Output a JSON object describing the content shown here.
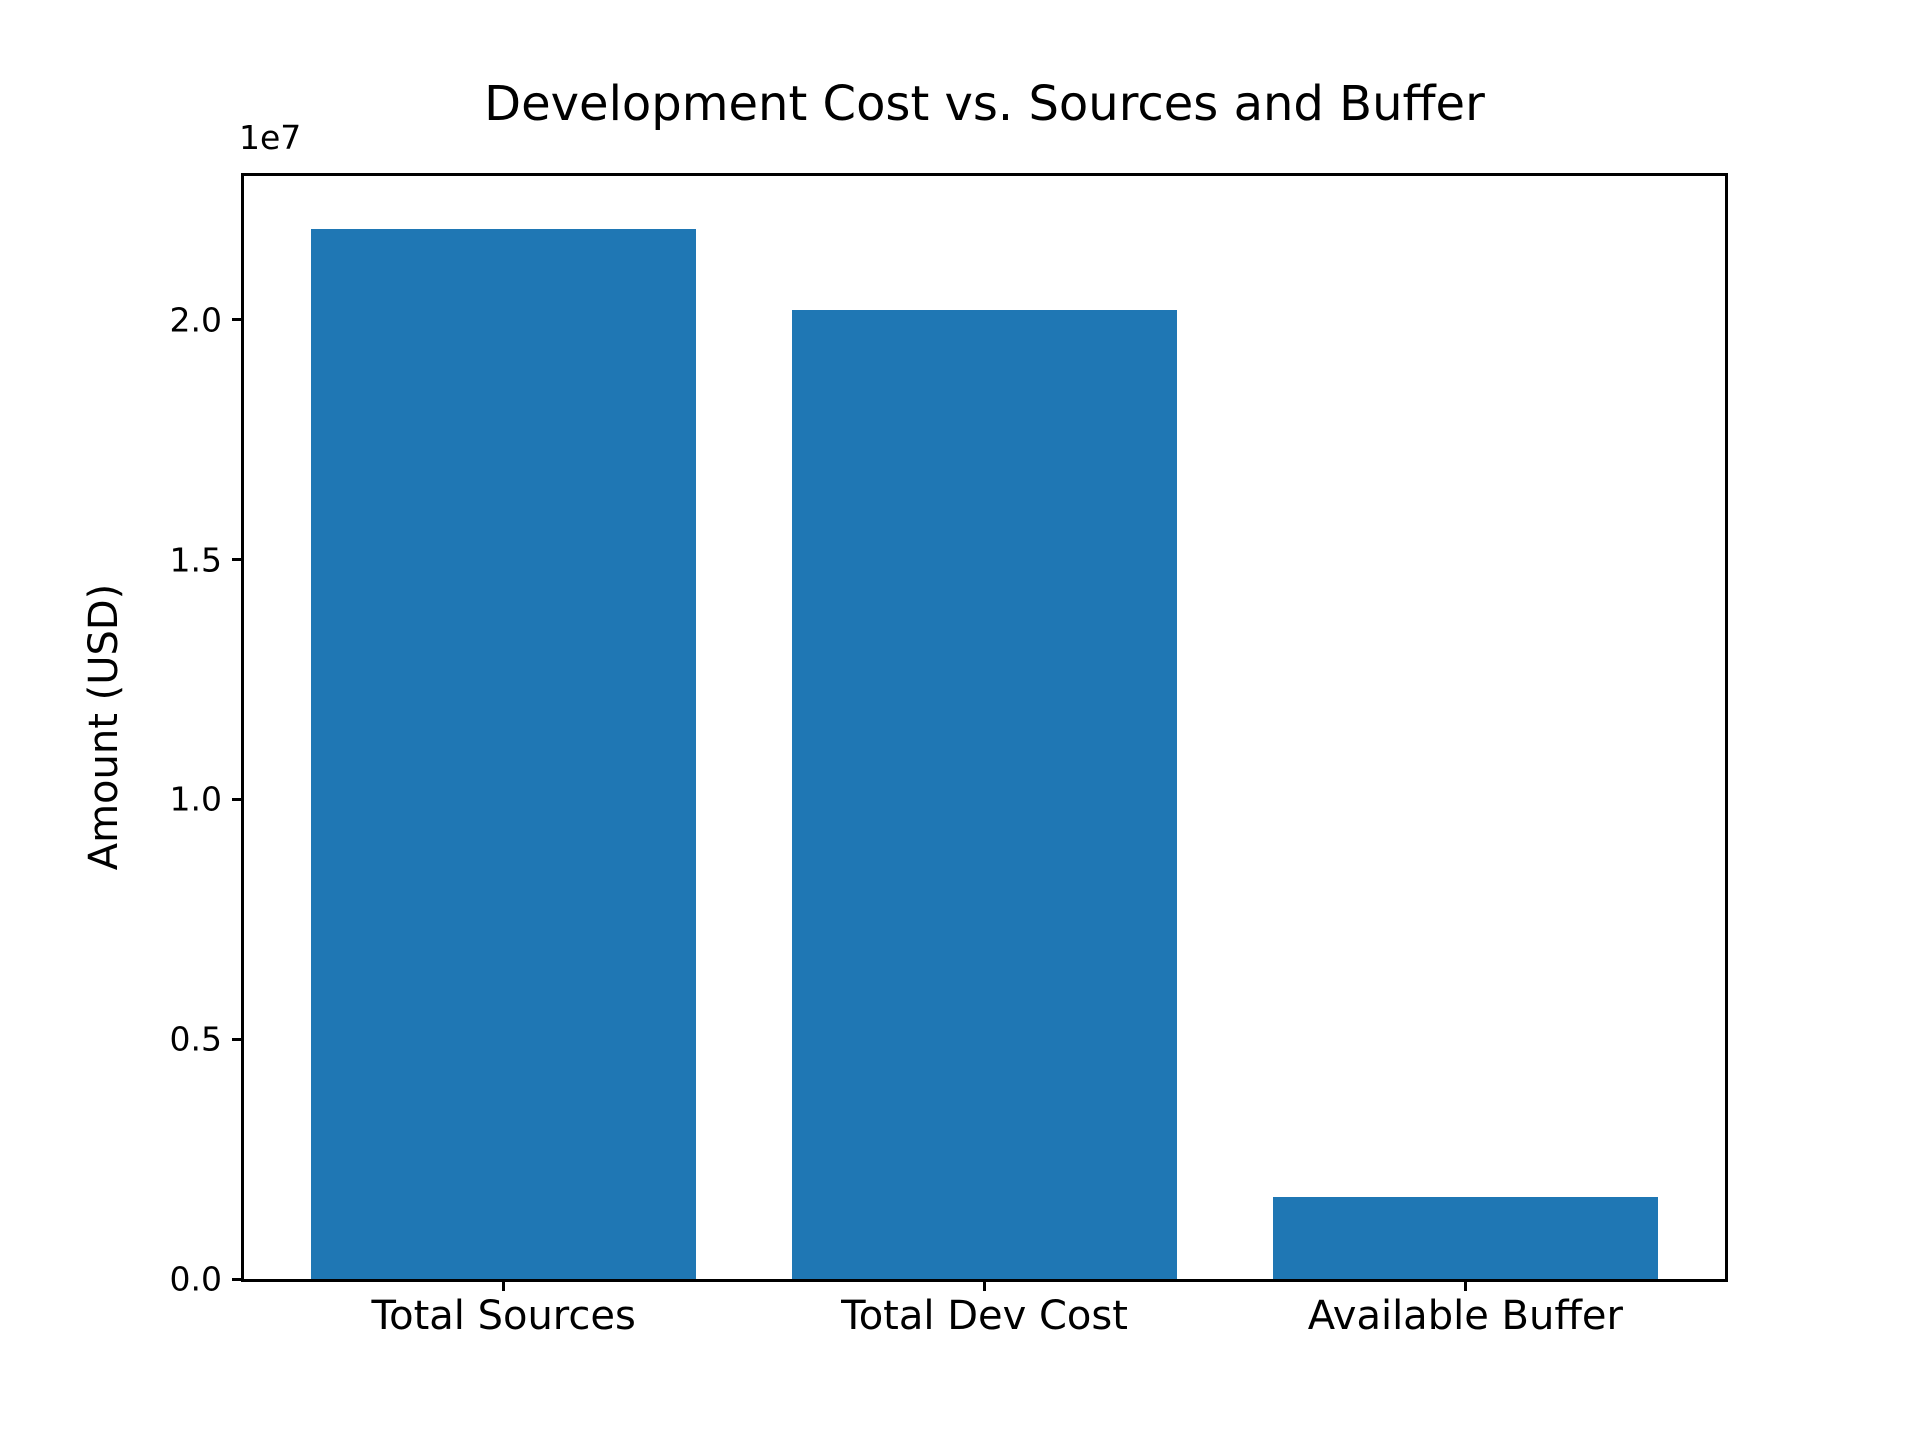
{
  "chart_data": {
    "type": "bar",
    "title": "Development Cost vs. Sources and Buffer",
    "ylabel": "Amount (USD)",
    "xlabel": "",
    "y_axis_offset_label": "1e7",
    "categories": [
      "Total Sources",
      "Total Dev Cost",
      "Available Buffer"
    ],
    "values": [
      21900000,
      20200000,
      1700000
    ],
    "bar_color": "#1f77b4",
    "bar_width": 0.8,
    "xlim": [
      -0.54,
      2.54
    ],
    "ylim": [
      0,
      23000000
    ],
    "yticks": [
      {
        "value": 0,
        "label": "0.0"
      },
      {
        "value": 5000000,
        "label": "0.5"
      },
      {
        "value": 10000000,
        "label": "1.0"
      },
      {
        "value": 15000000,
        "label": "1.5"
      },
      {
        "value": 20000000,
        "label": "2.0"
      }
    ],
    "grid": false,
    "legend_position": "none",
    "text_color": "#000000",
    "background_color": "#ffffff"
  }
}
